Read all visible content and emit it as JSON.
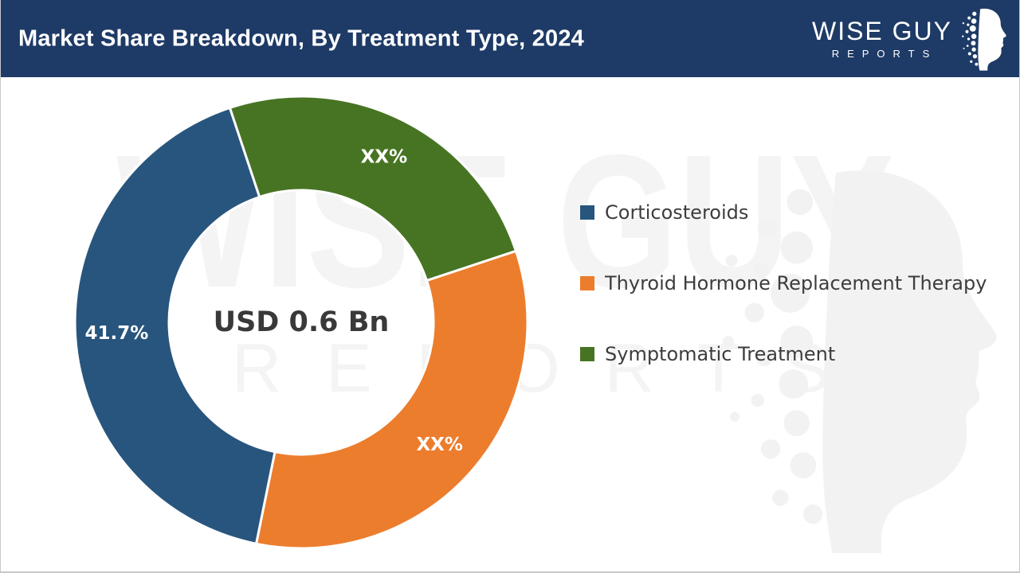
{
  "header": {
    "title": "Market Share Breakdown, By Treatment Type, 2024",
    "brand": {
      "name": "WISE GUY",
      "sub": "REPORTS"
    }
  },
  "watermark": {
    "line1": "WISE GUY",
    "line2": "REPORTS"
  },
  "chart_data": {
    "type": "pie",
    "subtype": "donut",
    "title": "Market Share Breakdown, By Treatment Type, 2024",
    "center_label": "USD 0.6 Bn",
    "legend_position": "right",
    "start_angle_deg": -18.4,
    "direction": "clockwise",
    "segments": [
      {
        "label": "Corticosteroids",
        "value_pct": 41.7,
        "data_label": "41.7%",
        "color": "#28557d"
      },
      {
        "label": "Thyroid Hormone Replacement Therapy",
        "value_pct": 33.3,
        "data_label": "XX%",
        "color": "#ec7d2d"
      },
      {
        "label": "Symptomatic Treatment",
        "value_pct": 25.0,
        "data_label": "XX%",
        "color": "#477423"
      }
    ]
  },
  "colors": {
    "header_bg": "#1e3a66",
    "page_border": "#c9c9c9",
    "center_text": "#393939",
    "legend_text": "#3d3d3d",
    "watermark": "#f4f4f4",
    "segment_gap": "#ffffff"
  }
}
